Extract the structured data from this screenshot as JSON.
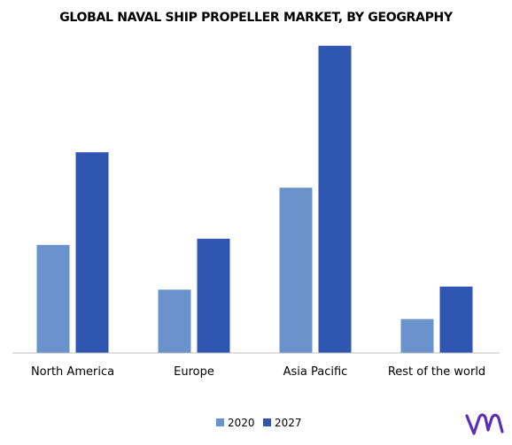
{
  "title": "GLOBAL NAVAL SHIP PROPELLER MARKET, BY GEOGRAPHY",
  "logo": {
    "icon": "vmr-logo-icon",
    "color": "#5a2fb8"
  },
  "chart_data": {
    "type": "bar",
    "title": "GLOBAL NAVAL SHIP PROPELLER MARKET, BY GEOGRAPHY",
    "categories": [
      "North America",
      "Europe",
      "Asia Pacific",
      "Rest of the world"
    ],
    "series": [
      {
        "name": "2020",
        "color": "#6a93cc",
        "values": [
          35,
          20.5,
          53.5,
          11
        ]
      },
      {
        "name": "2027",
        "color": "#2f56b0",
        "values": [
          65,
          37,
          99.5,
          21.5
        ]
      }
    ],
    "ylim": [
      0,
      110
    ],
    "xlabel": "",
    "ylabel": "",
    "grid": false,
    "y_axis_visible": false,
    "legend_position": "bottom-center"
  }
}
